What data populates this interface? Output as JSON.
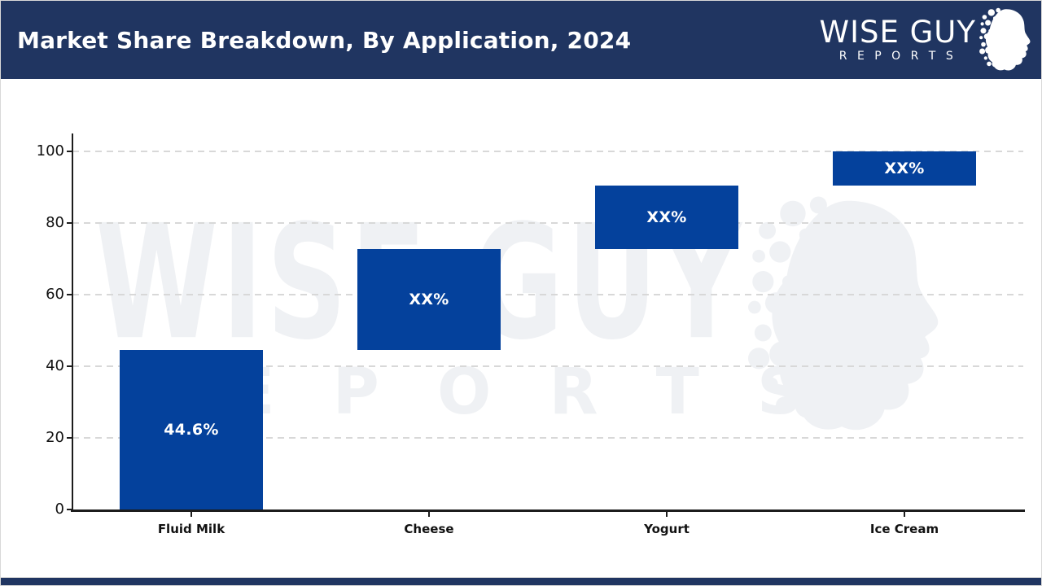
{
  "header": {
    "title": "Market Share Breakdown, By Application, 2024",
    "logo": {
      "line1": "WISE GUY",
      "line2": "R E P O R T S"
    }
  },
  "watermark": {
    "line1": "WISE GUY",
    "line2": "R E P O R T S"
  },
  "colors": {
    "header_bg": "#203561",
    "footer_bg": "#203561",
    "bar_fill": "#04419c",
    "bar_label": "#ffffff",
    "grid": "#d8d8d8",
    "axis": "#1c1c1c",
    "tick_label": "#111111",
    "watermark": "#eff1f4"
  },
  "chart_data": {
    "type": "bar",
    "subtype": "waterfall",
    "title": "Market Share Breakdown, By Application, 2024",
    "xlabel": "",
    "ylabel": "",
    "categories": [
      "Fluid Milk",
      "Cheese",
      "Yogurt",
      "Ice Cream"
    ],
    "segments": [
      {
        "category": "Fluid Milk",
        "label": "44.6%",
        "start": 0,
        "end": 44.6
      },
      {
        "category": "Cheese",
        "label": "XX%",
        "start": 44.6,
        "end": 72.7
      },
      {
        "category": "Yogurt",
        "label": "XX%",
        "start": 72.7,
        "end": 90.5
      },
      {
        "category": "Ice Cream",
        "label": "XX%",
        "start": 90.5,
        "end": 100
      }
    ],
    "yticks": [
      0,
      20,
      40,
      60,
      80,
      100
    ],
    "ylim": [
      0,
      105
    ],
    "grid": "horizontal-dashed",
    "legend": "none"
  }
}
